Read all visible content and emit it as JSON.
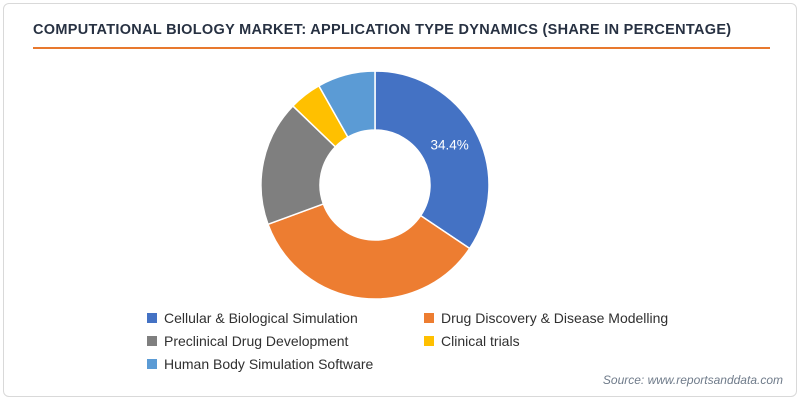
{
  "page": {
    "title": "COMPUTATIONAL BIOLOGY MARKET: APPLICATION TYPE DYNAMICS (SHARE IN PERCENTAGE)",
    "source": "Source: www.reportsanddata.com"
  },
  "colors": {
    "title_text": "#273142",
    "title_underline": "#E8792E",
    "legend_text": "#303030",
    "source_text": "#6F7B8A",
    "frame_border": "#D9D9D9",
    "data_label_text": "#FFFFFF"
  },
  "chart_data": {
    "type": "pie",
    "subtype": "donut",
    "title": "COMPUTATIONAL BIOLOGY MARKET: APPLICATION TYPE DYNAMICS (SHARE IN PERCENTAGE)",
    "legend_position": "bottom",
    "start_angle_deg": 0,
    "direction": "clockwise",
    "inner_radius_ratio": 0.48,
    "segments": [
      {
        "label": "Cellular & Biological Simulation",
        "value": 34.4,
        "value_label": "34.4%",
        "color": "#4472C4"
      },
      {
        "label": "Drug Discovery & Disease Modelling",
        "value": 35.0,
        "value_label": "",
        "color": "#ED7D31"
      },
      {
        "label": "Preclinical Drug Development",
        "value": 17.8,
        "value_label": "",
        "color": "#7F7F7F"
      },
      {
        "label": "Clinical trials",
        "value": 4.6,
        "value_label": "",
        "color": "#FFC000"
      },
      {
        "label": "Human Body Simulation Software",
        "value": 8.2,
        "value_label": "",
        "color": "#5B9BD5"
      }
    ]
  }
}
